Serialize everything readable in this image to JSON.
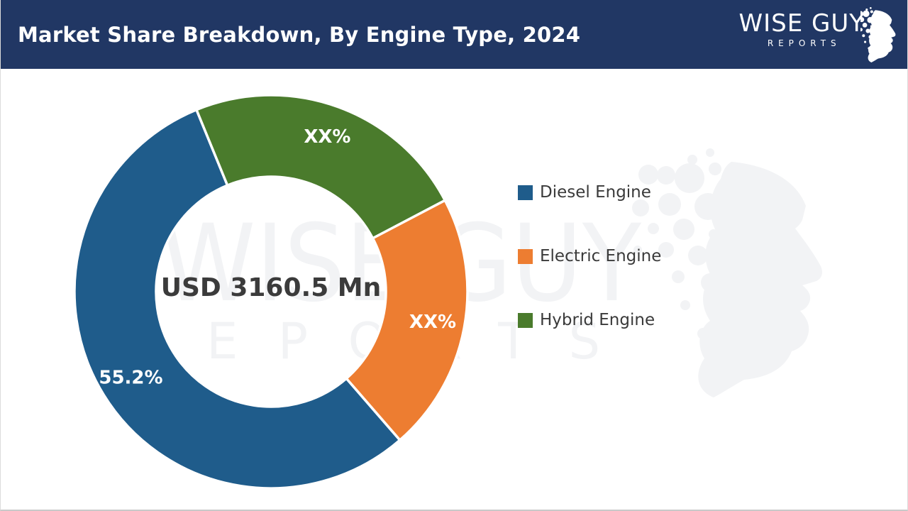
{
  "header": {
    "title": "Market Share Breakdown, By Engine Type, 2024",
    "logo": {
      "brand": "WISE GUY",
      "brand_sub": "REPORTS"
    }
  },
  "watermark": {
    "line1": "WISE GUY",
    "line2": "REPORTS"
  },
  "chart_data": {
    "type": "donut",
    "title": "Market Share Breakdown, By Engine Type, 2024",
    "center_label": "USD 3160.5 Mn",
    "units": "percent share",
    "start_angle_deg": 139,
    "direction": "clockwise",
    "inner_radius_ratio": 0.585,
    "slices": [
      {
        "label": "Diesel Engine",
        "value": 55.2,
        "display_pct": "55.2%",
        "color": "#1F5C8B"
      },
      {
        "label": "Hybrid Engine",
        "value": 23.5,
        "display_pct": "XX%",
        "color": "#4A7B2C"
      },
      {
        "label": "Electric Engine",
        "value": 21.3,
        "display_pct": "XX%",
        "color": "#ED7D31"
      }
    ],
    "legend": [
      {
        "label": "Diesel Engine",
        "color": "#1F5C8B"
      },
      {
        "label": "Electric Engine",
        "color": "#ED7D31"
      },
      {
        "label": "Hybrid Engine",
        "color": "#4A7B2C"
      }
    ],
    "legend_position": "right"
  },
  "colors": {
    "header_bg": "#213764",
    "diesel": "#1F5C8B",
    "electric": "#ED7D31",
    "hybrid": "#4A7B2C",
    "text_dark": "#3A3A3A",
    "slice_label_text": "#FFFFFF",
    "watermark": "#F2F3F5"
  }
}
